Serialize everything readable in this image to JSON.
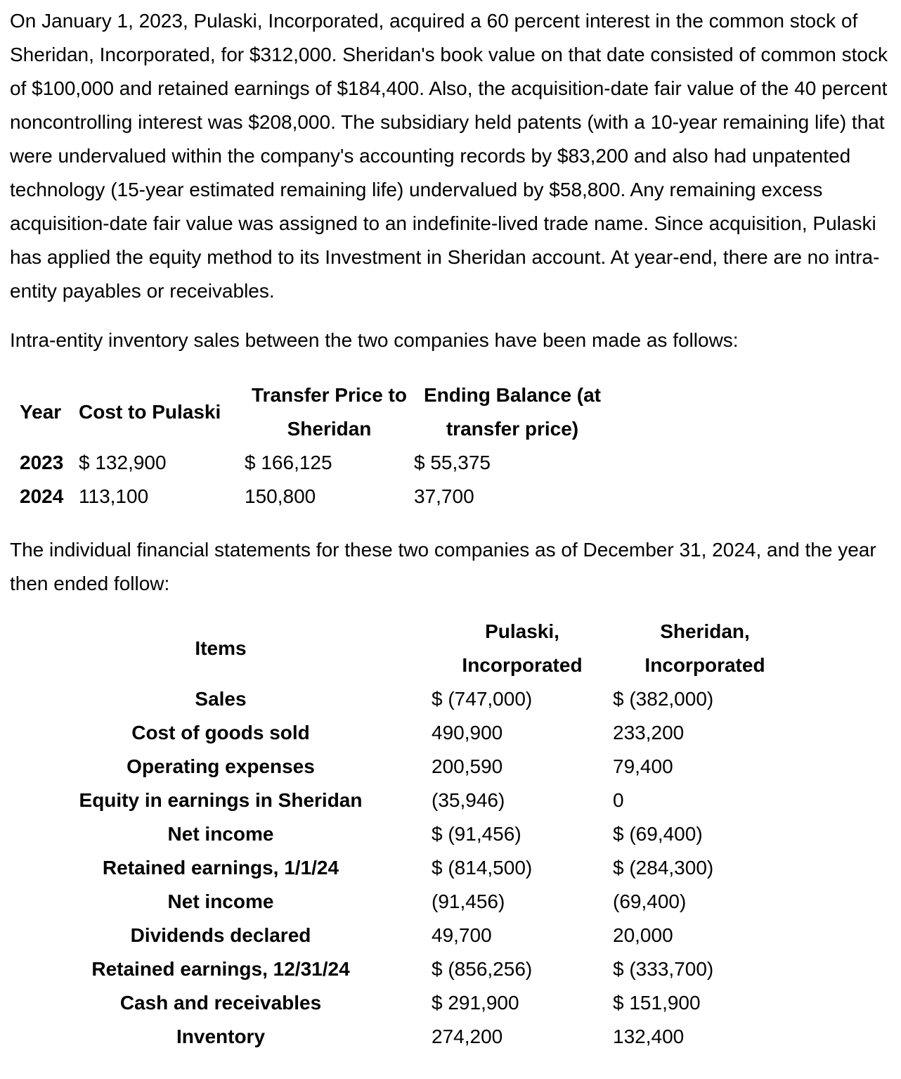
{
  "colors": {
    "text": "#000000",
    "background": "#ffffff"
  },
  "intro_paragraph": "On January 1, 2023, Pulaski, Incorporated, acquired a 60 percent interest in the common stock of Sheridan, Incorporated, for $312,000. Sheridan's book value on that date consisted of common stock of $100,000 and retained earnings of $184,400. Also, the acquisition-date fair value of the 40 percent noncontrolling interest was $208,000. The subsidiary held patents (with a 10-year remaining life) that were undervalued within the company's accounting records by $83,200 and also had unpatented technology (15-year estimated remaining life) undervalued by $58,800. Any remaining excess acquisition-date fair value was assigned to an indefinite-lived trade name. Since acquisition, Pulaski has applied the equity method to its Investment in Sheridan account. At year-end, there are no intra-entity payables or receivables.",
  "intra_entity_intro": "Intra-entity inventory sales between the two companies have been made as follows:",
  "intra_entity_table": {
    "headers": {
      "year": "Year",
      "cost": "Cost to Pulaski",
      "transfer_line1": "Transfer Price to",
      "transfer_line2": "Sheridan",
      "ending_line1": "Ending Balance (at",
      "ending_line2": "transfer price)"
    },
    "rows": [
      {
        "year": "2023",
        "cost": "$ 132,900",
        "transfer": "$ 166,125",
        "ending": "$ 55,375"
      },
      {
        "year": "2024",
        "cost": "113,100",
        "transfer": "150,800",
        "ending": "37,700"
      }
    ]
  },
  "financial_statements_intro": "The individual financial statements for these two companies as of December 31, 2024, and the year then ended follow:",
  "financial_statements_table": {
    "headers": {
      "items": "Items",
      "pulaski_line1": "Pulaski,",
      "pulaski_line2": "Incorporated",
      "sheridan_line1": "Sheridan,",
      "sheridan_line2": "Incorporated"
    },
    "rows": [
      {
        "label": "Sales",
        "pulaski": "$ (747,000)",
        "sheridan": "$ (382,000)"
      },
      {
        "label": "Cost of goods sold",
        "pulaski": "490,900",
        "sheridan": "233,200"
      },
      {
        "label": "Operating expenses",
        "pulaski": "200,590",
        "sheridan": "79,400"
      },
      {
        "label": "Equity in earnings in Sheridan",
        "pulaski": "(35,946)",
        "sheridan": "0"
      },
      {
        "label": "Net income",
        "pulaski": "$ (91,456)",
        "sheridan": "$ (69,400)"
      },
      {
        "label": "Retained earnings, 1/1/24",
        "pulaski": "$ (814,500)",
        "sheridan": "$ (284,300)"
      },
      {
        "label": "Net income",
        "pulaski": "(91,456)",
        "sheridan": "(69,400)"
      },
      {
        "label": "Dividends declared",
        "pulaski": "49,700",
        "sheridan": "20,000"
      },
      {
        "label": "Retained earnings, 12/31/24",
        "pulaski": "$ (856,256)",
        "sheridan": "$ (333,700)"
      },
      {
        "label": "Cash and receivables",
        "pulaski": "$ 291,900",
        "sheridan": "$ 151,900"
      },
      {
        "label": "Inventory",
        "pulaski": "274,200",
        "sheridan": "132,400"
      }
    ]
  }
}
